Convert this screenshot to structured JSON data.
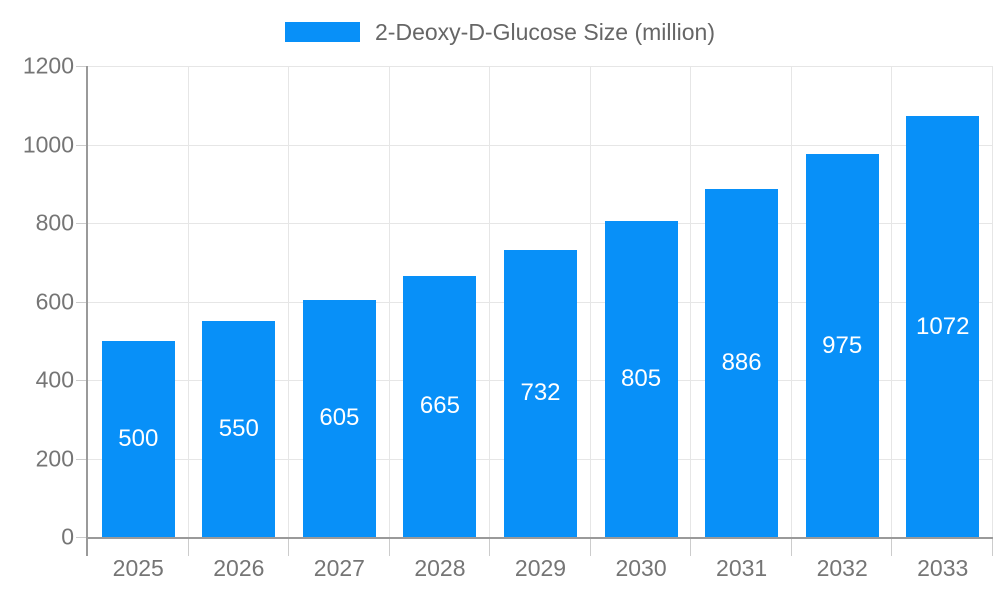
{
  "legend": {
    "label": "2-Deoxy-D-Glucose Size (million)"
  },
  "chart_data": {
    "type": "bar",
    "title": "",
    "xlabel": "",
    "ylabel": "",
    "series_name": "2-Deoxy-D-Glucose Size (million)",
    "categories": [
      "2025",
      "2026",
      "2027",
      "2028",
      "2029",
      "2030",
      "2031",
      "2032",
      "2033"
    ],
    "values": [
      500,
      550,
      605,
      665,
      732,
      805,
      886,
      975,
      1072
    ],
    "bar_labels": [
      "500",
      "550",
      "605",
      "665",
      "732",
      "805",
      "886",
      "975",
      "1072"
    ],
    "ylim": [
      0,
      1200
    ],
    "yticks": [
      0,
      200,
      400,
      600,
      800,
      1000,
      1200
    ],
    "ytick_labels": [
      "0",
      "200",
      "400",
      "600",
      "800",
      "1000",
      "1200"
    ],
    "grid": true,
    "legend_position": "top"
  },
  "colors": {
    "bar": "#0890f8",
    "axis_line": "#9a9a9a",
    "grid_line": "#e6e6e6",
    "tick": "#cccccc",
    "axis_text": "#757575",
    "legend_text": "#666666",
    "bar_label_text": "#ffffff",
    "background": "#ffffff"
  }
}
